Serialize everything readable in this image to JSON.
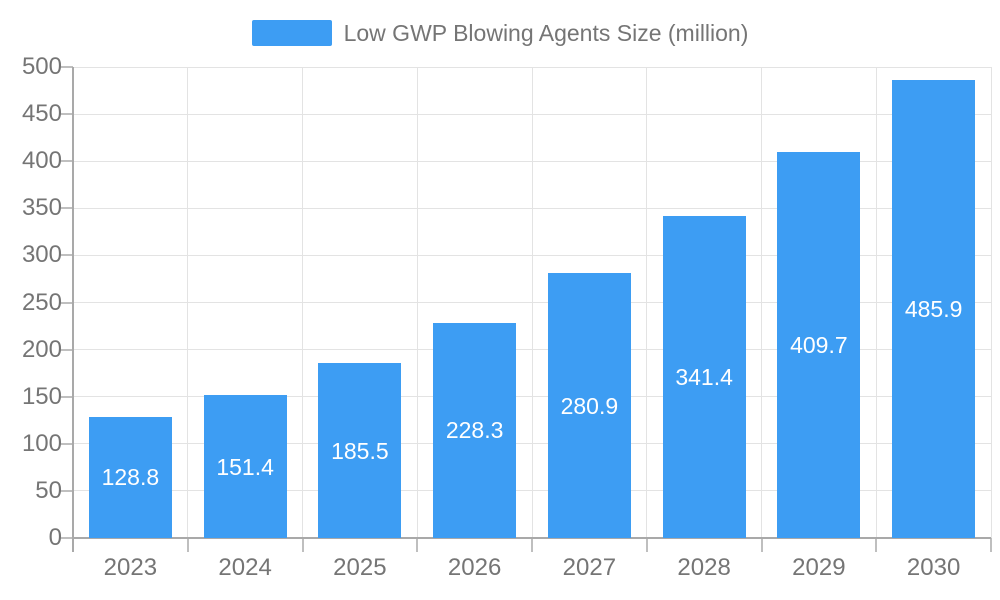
{
  "legend": {
    "label": "Low GWP Blowing Agents Size (million)"
  },
  "chart_data": {
    "type": "bar",
    "title": "",
    "xlabel": "",
    "ylabel": "",
    "categories": [
      "2023",
      "2024",
      "2025",
      "2026",
      "2027",
      "2028",
      "2029",
      "2030"
    ],
    "values": [
      128.8,
      151.4,
      185.5,
      228.3,
      280.9,
      341.4,
      409.7,
      485.9
    ],
    "series_name": "Low GWP Blowing Agents Size (million)",
    "ylim": [
      0,
      500
    ],
    "ytick_step": 50,
    "yticks": [
      0,
      50,
      100,
      150,
      200,
      250,
      300,
      350,
      400,
      450,
      500
    ],
    "grid": true,
    "legend_position": "top",
    "colors": {
      "bar": "#3d9df3",
      "value_label": "#ffffff",
      "axis_text": "#757575",
      "gridline": "#e3e3e3",
      "axis_line": "#a9a9a9",
      "tick": "#bfbfbf"
    }
  }
}
